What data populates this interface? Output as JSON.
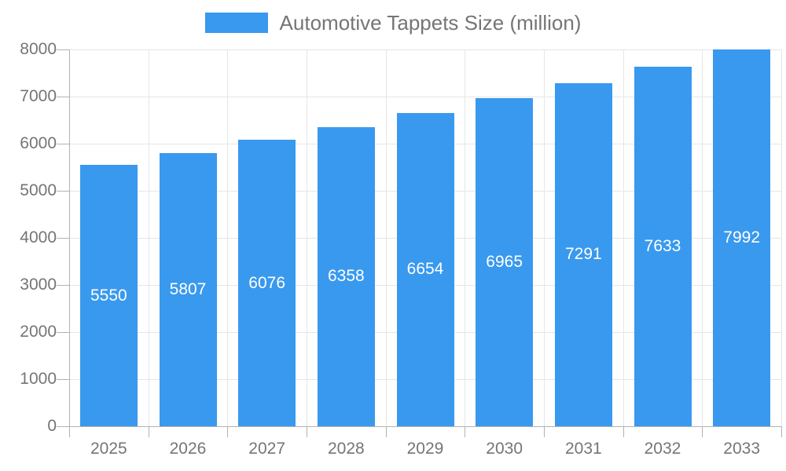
{
  "legend": {
    "label": "Automotive Tappets Size (million)",
    "swatch_color": "#3999EE"
  },
  "chart_data": {
    "type": "bar",
    "title": "Automotive Tappets Size (million)",
    "categories": [
      "2025",
      "2026",
      "2027",
      "2028",
      "2029",
      "2030",
      "2031",
      "2032",
      "2033"
    ],
    "series": [
      {
        "name": "Automotive Tappets Size (million)",
        "values": [
          5550,
          5807,
          6076,
          6358,
          6654,
          6965,
          7291,
          7633,
          7992
        ],
        "color": "#3999EE"
      }
    ],
    "value_labels": {
      "position": "inside-center",
      "color": "#ffffff"
    },
    "xlabel": "",
    "ylabel": "",
    "ylim": [
      0,
      8000
    ],
    "yticks": [
      0,
      1000,
      2000,
      3000,
      4000,
      5000,
      6000,
      7000,
      8000
    ],
    "grid": true,
    "legend_position": "top"
  },
  "colors": {
    "bar": "#3999EE",
    "gridline": "#e6e6e6",
    "axis": "#b3b3b3",
    "label_text": "#757575",
    "value_text": "#ffffff",
    "background": "#ffffff"
  }
}
